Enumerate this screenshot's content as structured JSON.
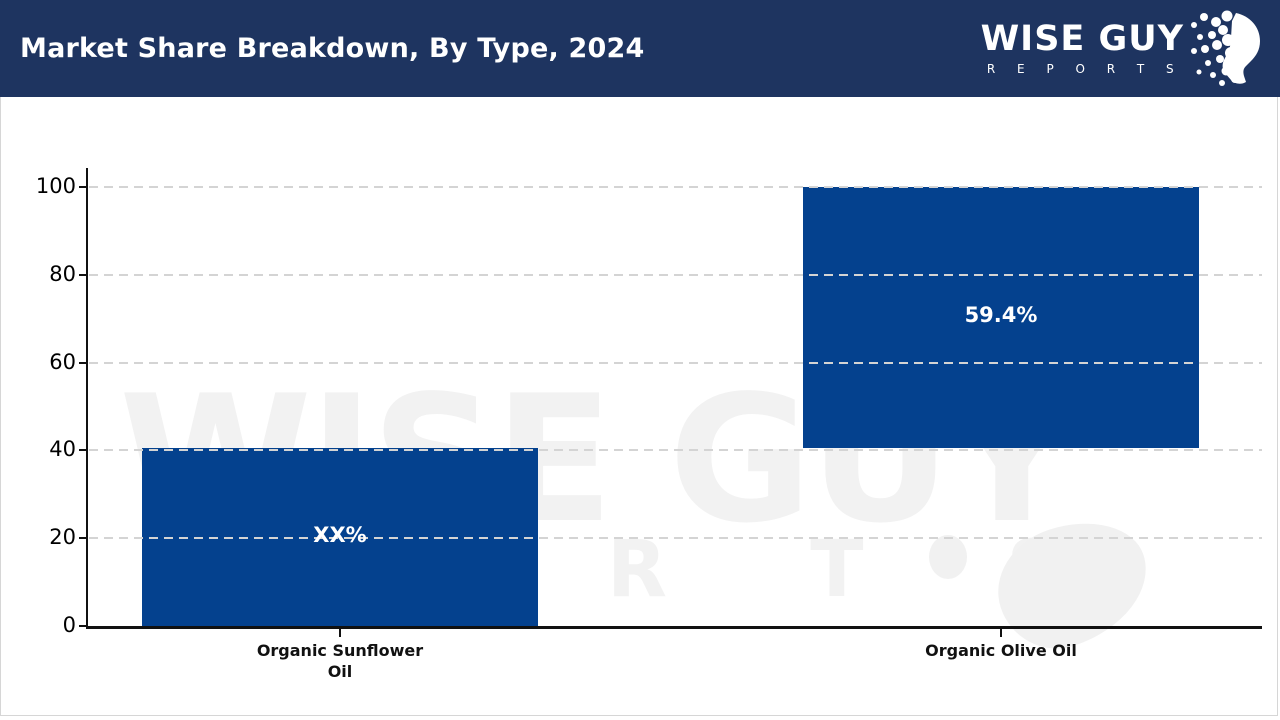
{
  "header": {
    "title": "Market Share Breakdown, By Type, 2024",
    "logo": {
      "wordmark": "WISE GUY",
      "subtext": "R E P O R T S"
    }
  },
  "watermark": {
    "wordmark": "WISE GUY",
    "subtext": "R T S"
  },
  "colors": {
    "header_bg": "#1e3460",
    "bar": "#04418e",
    "grid": "#d4d4d4",
    "axis": "#111111",
    "bar_label": "#ffffff"
  },
  "chart_data": {
    "type": "bar",
    "title": "Market Share Breakdown, By Type, 2024",
    "categories": [
      "Organic Sunflower Oil",
      "Organic Olive Oil"
    ],
    "bars": [
      {
        "category": "Organic Sunflower Oil",
        "start": 0,
        "end": 40.6,
        "label": "XX%"
      },
      {
        "category": "Organic Olive Oil",
        "start": 40.6,
        "end": 100,
        "label": "59.4%"
      }
    ],
    "yticks": [
      0,
      20,
      40,
      60,
      80,
      100
    ],
    "ylim": [
      0,
      104
    ],
    "grid": "horizontal dashed",
    "legend": false,
    "stacked_to_100": true
  }
}
